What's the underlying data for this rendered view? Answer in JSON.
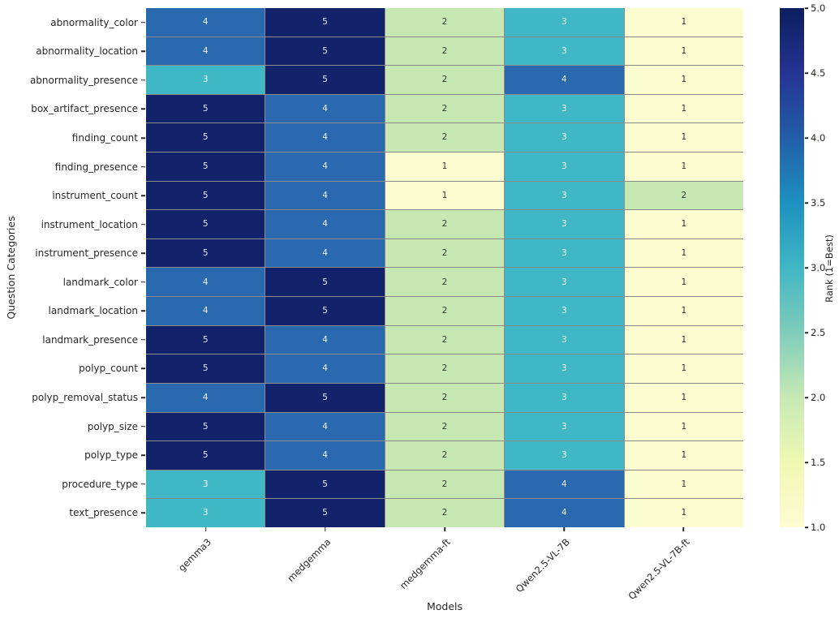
{
  "chart_data": {
    "type": "heatmap",
    "xlabel": "Models",
    "ylabel": "Question Categories",
    "colorbar_label": "Rank (1=Best)",
    "colormap": "YlGnBu",
    "vmin": 1.0,
    "vmax": 5.0,
    "grid": "cell borders on, gray lines",
    "legend_position": "colorbar right",
    "colorbar_ticks": [
      "5.0",
      "4.5",
      "4.0",
      "3.5",
      "3.0",
      "2.5",
      "2.0",
      "1.5",
      "1.0"
    ],
    "categories": [
      "abnormality_color",
      "abnormality_location",
      "abnormality_presence",
      "box_artifact_presence",
      "finding_count",
      "finding_presence",
      "instrument_count",
      "instrument_location",
      "instrument_presence",
      "landmark_color",
      "landmark_location",
      "landmark_presence",
      "polyp_count",
      "polyp_removal_status",
      "polyp_size",
      "polyp_type",
      "procedure_type",
      "text_presence"
    ],
    "models": [
      "gemma3",
      "medgemma",
      "medgemma-ft",
      "Qwen2.5-VL-7B",
      "Qwen2.5-VL-7B-ft"
    ],
    "values": [
      [
        4,
        5,
        2,
        3,
        1
      ],
      [
        4,
        5,
        2,
        3,
        1
      ],
      [
        3,
        5,
        2,
        4,
        1
      ],
      [
        5,
        4,
        2,
        3,
        1
      ],
      [
        5,
        4,
        2,
        3,
        1
      ],
      [
        5,
        4,
        1,
        3,
        1
      ],
      [
        5,
        4,
        1,
        3,
        2
      ],
      [
        5,
        4,
        2,
        3,
        1
      ],
      [
        5,
        4,
        2,
        3,
        1
      ],
      [
        4,
        5,
        2,
        3,
        1
      ],
      [
        4,
        5,
        2,
        3,
        1
      ],
      [
        5,
        4,
        2,
        3,
        1
      ],
      [
        5,
        4,
        2,
        3,
        1
      ],
      [
        4,
        5,
        2,
        3,
        1
      ],
      [
        5,
        4,
        2,
        3,
        1
      ],
      [
        5,
        4,
        2,
        3,
        1
      ],
      [
        3,
        5,
        2,
        4,
        1
      ],
      [
        3,
        5,
        2,
        4,
        1
      ]
    ],
    "rank_colors": {
      "1": "#fbfcd0",
      "2": "#c6e9b3",
      "3": "#3fb7c4",
      "4": "#2a69b0",
      "5": "#12226b"
    },
    "rank_text_colors": {
      "1": "#333333",
      "2": "#333333",
      "3": "#f2f7f5",
      "4": "#eef3f8",
      "5": "#e8ecf5"
    },
    "colorbar_gradient_bottom_to_top": [
      "#fdfdd2",
      "#eef8b2",
      "#c7e9b4",
      "#7fcdbb",
      "#41b6c4",
      "#1d91c0",
      "#225ea8",
      "#253494",
      "#0b1e5e"
    ]
  }
}
